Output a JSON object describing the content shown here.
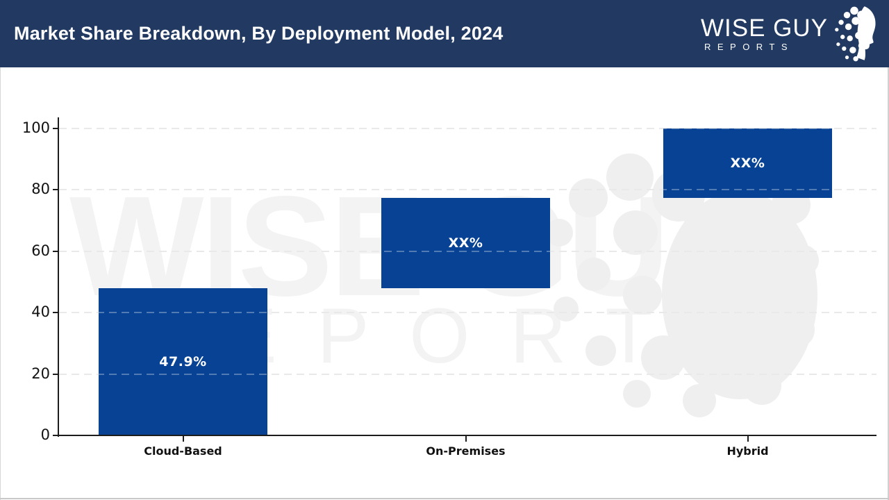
{
  "header": {
    "title": "Market Share Breakdown, By Deployment Model, 2024",
    "bg_color": "#223a62",
    "logo": {
      "wordmark": "WISE GUY",
      "subtitle": "REPORTS"
    }
  },
  "watermark": {
    "line1": "WISE GUY",
    "line2": "REPORTS"
  },
  "chart_data": {
    "type": "bar",
    "subtype": "stacked-waterfall",
    "title": "Market Share Breakdown, By Deployment Model, 2024",
    "categories": [
      "Cloud-Based",
      "On-Premises",
      "Hybrid"
    ],
    "series": [
      {
        "name": "Cloud-Based",
        "start": 0,
        "end": 47.9,
        "value": 47.9,
        "label": "47.9%"
      },
      {
        "name": "On-Premises",
        "start": 47.9,
        "end": 77.3,
        "value": 29.4,
        "label": "XX%"
      },
      {
        "name": "Hybrid",
        "start": 77.3,
        "end": 100,
        "value": 22.7,
        "label": "XX%"
      }
    ],
    "xlabel": "",
    "ylabel": "",
    "ylim": [
      0,
      100
    ],
    "yticks": [
      0,
      20,
      40,
      60,
      80,
      100
    ],
    "grid": "horizontal dashed, drawn over bars",
    "legend": "none",
    "bar_color": "#084294",
    "bar_label_color": "#ffffff",
    "axis_color": "#1c1c1c",
    "background_color": "#ffffff"
  }
}
